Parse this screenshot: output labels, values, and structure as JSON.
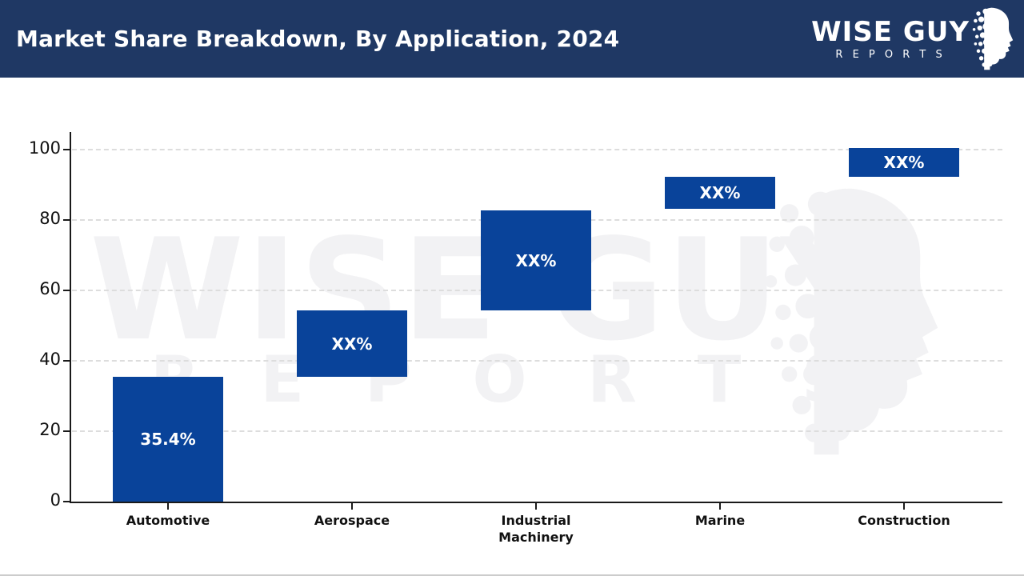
{
  "header": {
    "title": "Market Share Breakdown, By Application, 2024",
    "logo": {
      "name_line": "WISE GUY",
      "reports_line": "R E P O R T S"
    }
  },
  "watermark": {
    "name_line": "WISE GUY",
    "reports_line": "R E P O R T S"
  },
  "chart_data": {
    "type": "bar",
    "variant": "waterfall",
    "title": "Market Share Breakdown, By Application, 2024",
    "xlabel": "",
    "ylabel": "",
    "ylim": [
      0,
      105
    ],
    "y_ticks": [
      0,
      20,
      40,
      60,
      80,
      100
    ],
    "grid": {
      "horizontal": true,
      "style": "dashed",
      "color": "#dddddd"
    },
    "legend": null,
    "bar_color": "#09439a",
    "categories": [
      "Automotive",
      "Aerospace",
      "Industrial\nMachinery",
      "Marine",
      "Construction"
    ],
    "bars": [
      {
        "category": "Automotive",
        "start": 0,
        "end": 35.4,
        "label": "35.4%"
      },
      {
        "category": "Aerospace",
        "start": 35.4,
        "end": 54.3,
        "label": "XX%"
      },
      {
        "category": "Industrial Machinery",
        "start": 54.3,
        "end": 82.7,
        "label": "XX%"
      },
      {
        "category": "Marine",
        "start": 83.2,
        "end": 92.3,
        "label": "XX%"
      },
      {
        "category": "Construction",
        "start": 92.3,
        "end": 100.4,
        "label": "XX%"
      }
    ]
  }
}
